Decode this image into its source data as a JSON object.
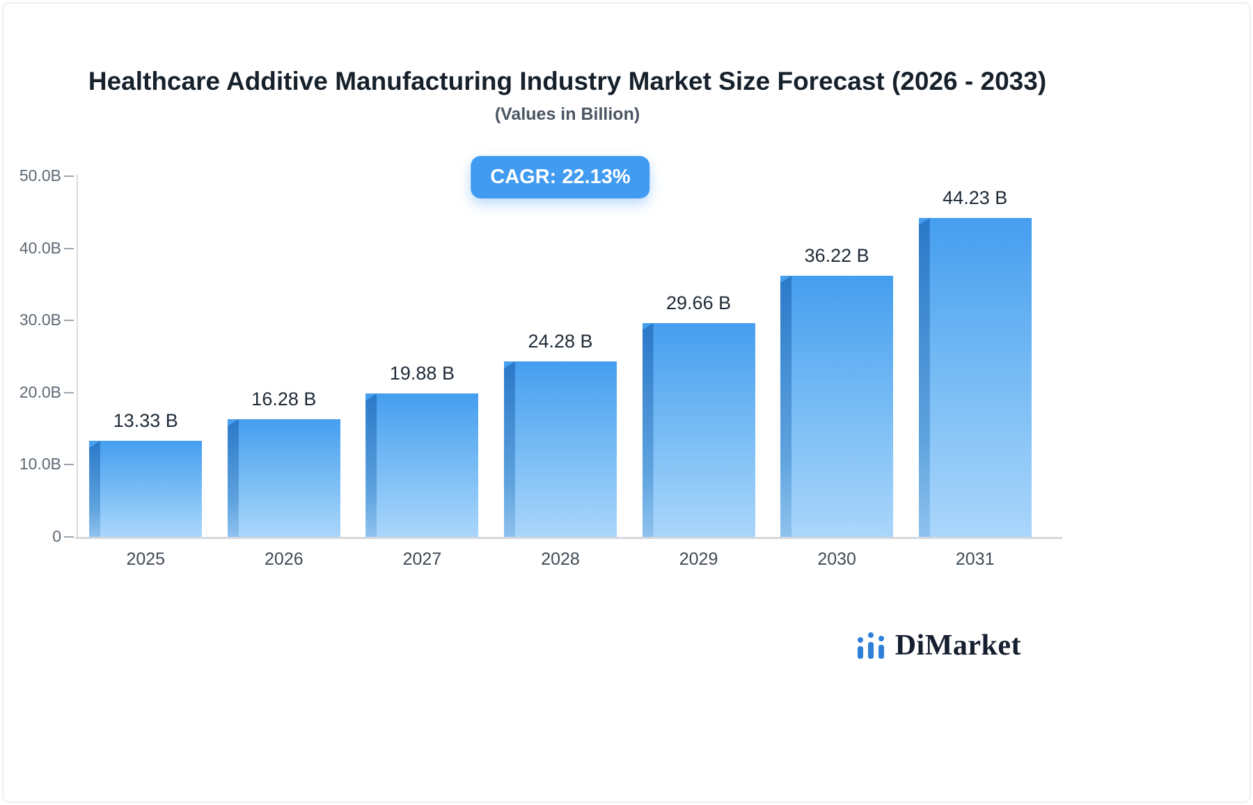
{
  "header": {
    "title": "Healthcare Additive Manufacturing Industry Market Size Forecast (2026 - 2033)",
    "subtitle": "(Values in Billion)",
    "cagr_badge": "CAGR: 22.13%"
  },
  "chart_data": {
    "type": "bar",
    "categories": [
      "2025",
      "2026",
      "2027",
      "2028",
      "2029",
      "2030",
      "2031"
    ],
    "values": [
      13.33,
      16.28,
      19.88,
      24.28,
      29.66,
      36.22,
      44.23
    ],
    "value_labels": [
      "13.33 B",
      "16.28 B",
      "19.88 B",
      "24.28 B",
      "29.66 B",
      "36.22 B",
      "44.23 B"
    ],
    "title": "Healthcare Additive Manufacturing Industry Market Size Forecast (2026 - 2033)",
    "xlabel": "",
    "ylabel": "",
    "ylim": [
      0,
      50
    ],
    "ytick_values": [
      0,
      10,
      20,
      30,
      40,
      50
    ],
    "ytick_labels": [
      "0",
      "10.0B",
      "20.0B",
      "30.0B",
      "40.0B",
      "50.0B"
    ],
    "grid": false,
    "legend": false,
    "bar_color_top": "#459eef",
    "bar_color_bottom": "#aad6fb",
    "bar_side_color": "#2a78c8",
    "annotation": "CAGR: 22.13%"
  },
  "branding": {
    "logo_text": "DiMarket",
    "logo_icon": "bar-chart-dots-icon",
    "logo_color": "#2e80d8"
  }
}
